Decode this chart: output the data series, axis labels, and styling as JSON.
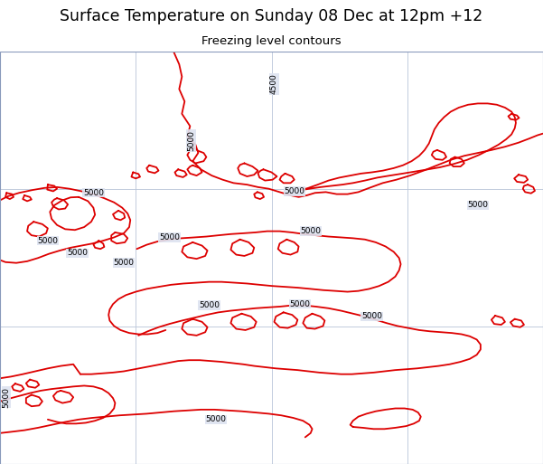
{
  "title": "Surface Temperature on Sunday 08 Dec at 12pm +12",
  "subtitle": "Freezing level contours",
  "title_fontsize": 12.5,
  "subtitle_fontsize": 9.5,
  "map_background": "#dde3f0",
  "grid_color": "#b8c4d8",
  "border_color": "#8899bb",
  "contour_color": "#dd0000",
  "contour_linewidth": 1.3,
  "label_fontsize": 6.5,
  "fig_bg": "#ffffff"
}
